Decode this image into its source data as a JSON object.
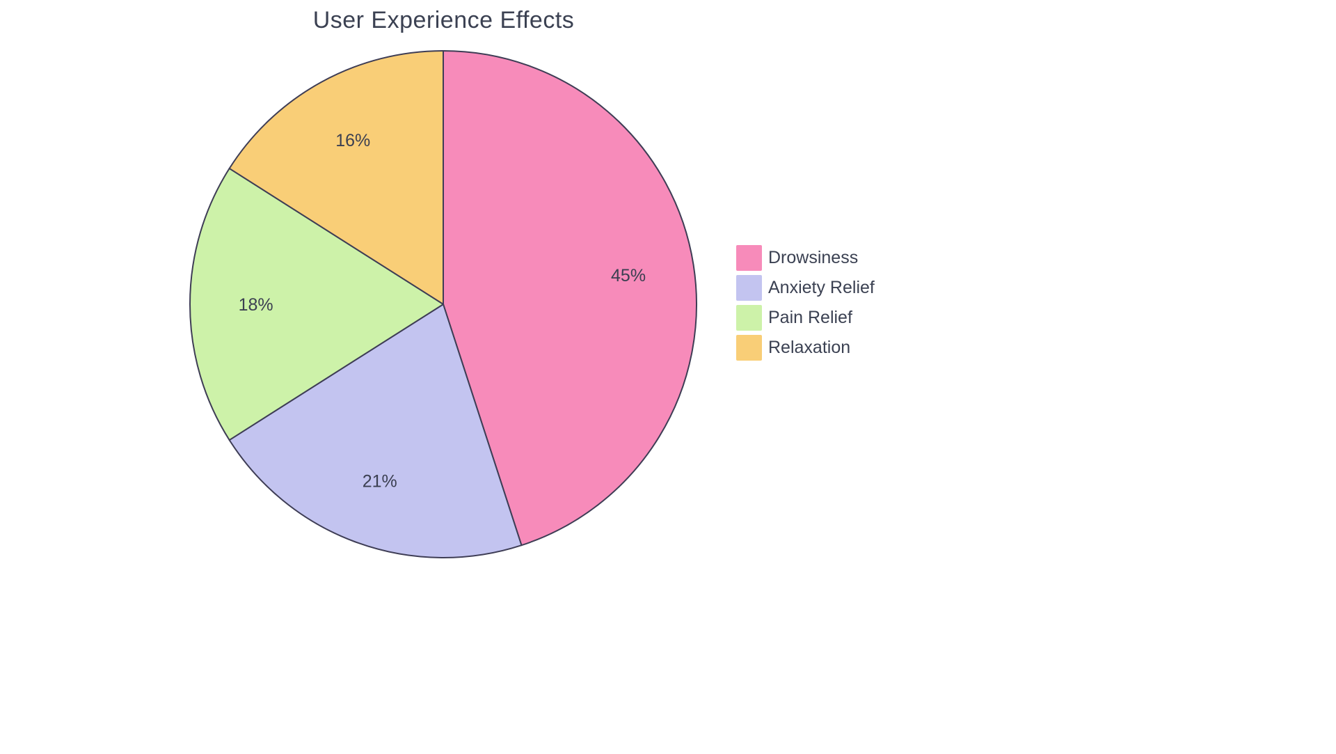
{
  "title": "User Experience Effects",
  "chart_data": {
    "type": "pie",
    "title": "User Experience Effects",
    "labels": [
      "Drowsiness",
      "Anxiety Relief",
      "Pain Relief",
      "Relaxation"
    ],
    "values": [
      45,
      21,
      18,
      16
    ],
    "unit": "%",
    "slice_labels": [
      "45%",
      "21%",
      "18%",
      "16%"
    ],
    "colors": [
      "#F78BBA",
      "#C3C4F0",
      "#CDF2A9",
      "#F9CE77"
    ],
    "stroke_color": "#3E3D55",
    "stroke_width": 2,
    "label_color": "#3B3F51",
    "start_angle_deg": -90,
    "direction": "clockwise",
    "legend_position": "right"
  }
}
